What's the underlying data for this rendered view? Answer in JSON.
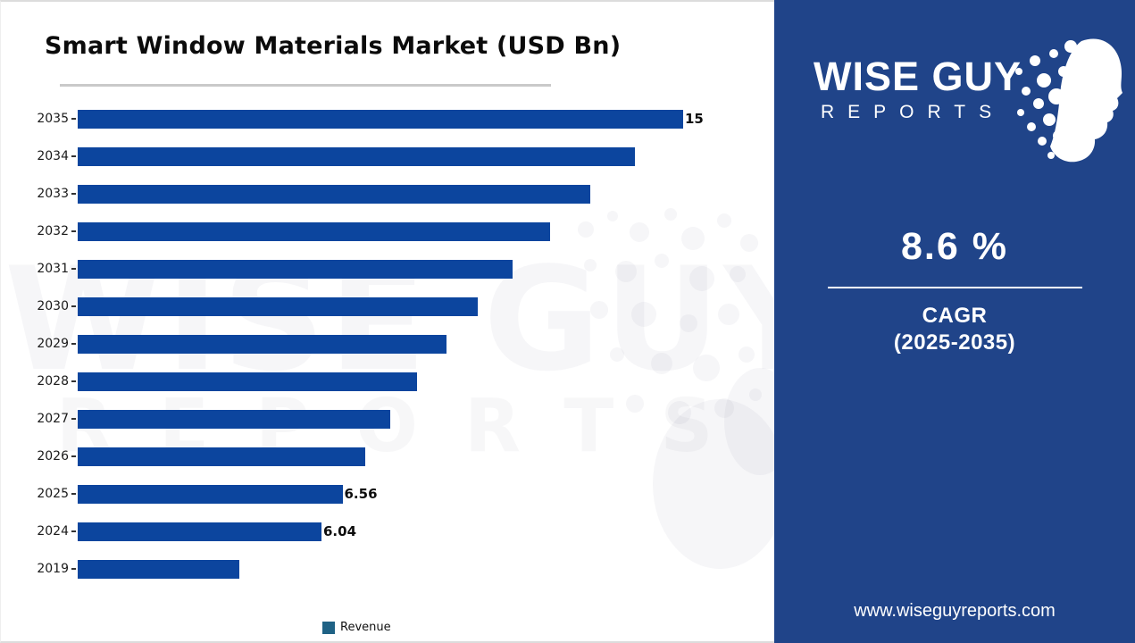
{
  "header": {
    "title": "Smart Window Materials Market (USD Bn)"
  },
  "chart_data": {
    "type": "bar",
    "orientation": "horizontal",
    "title": "Smart Window Materials Market (USD Bn)",
    "xlabel": "",
    "ylabel": "",
    "xlim": [
      0,
      17.3
    ],
    "grid": false,
    "categories": [
      "2035",
      "2034",
      "2033",
      "2032",
      "2031",
      "2030",
      "2029",
      "2028",
      "2027",
      "2026",
      "2025",
      "2024",
      "2019"
    ],
    "values": [
      15,
      13.8,
      12.71,
      11.7,
      10.77,
      9.92,
      9.13,
      8.41,
      7.74,
      7.13,
      6.56,
      6.04,
      4.0
    ],
    "value_labels": {
      "2035": "15",
      "2025": "6.56",
      "2024": "6.04"
    },
    "bar_color": "#0c459e",
    "legend_position": "bottom",
    "legend_label": "Revenue",
    "legend_swatch_color": "#1f6285"
  },
  "watermark": {
    "line1": "WISE GUY",
    "line2": "REPORTS"
  },
  "sidebar": {
    "bg_color": "#204489",
    "logo_line1": "WISE GUY",
    "logo_line2": "REPORTS",
    "cagr_value": "8.6 %",
    "cagr_label_line1": "CAGR",
    "cagr_label_line2": "(2025-2035)",
    "website": "www.wiseguyreports.com"
  }
}
